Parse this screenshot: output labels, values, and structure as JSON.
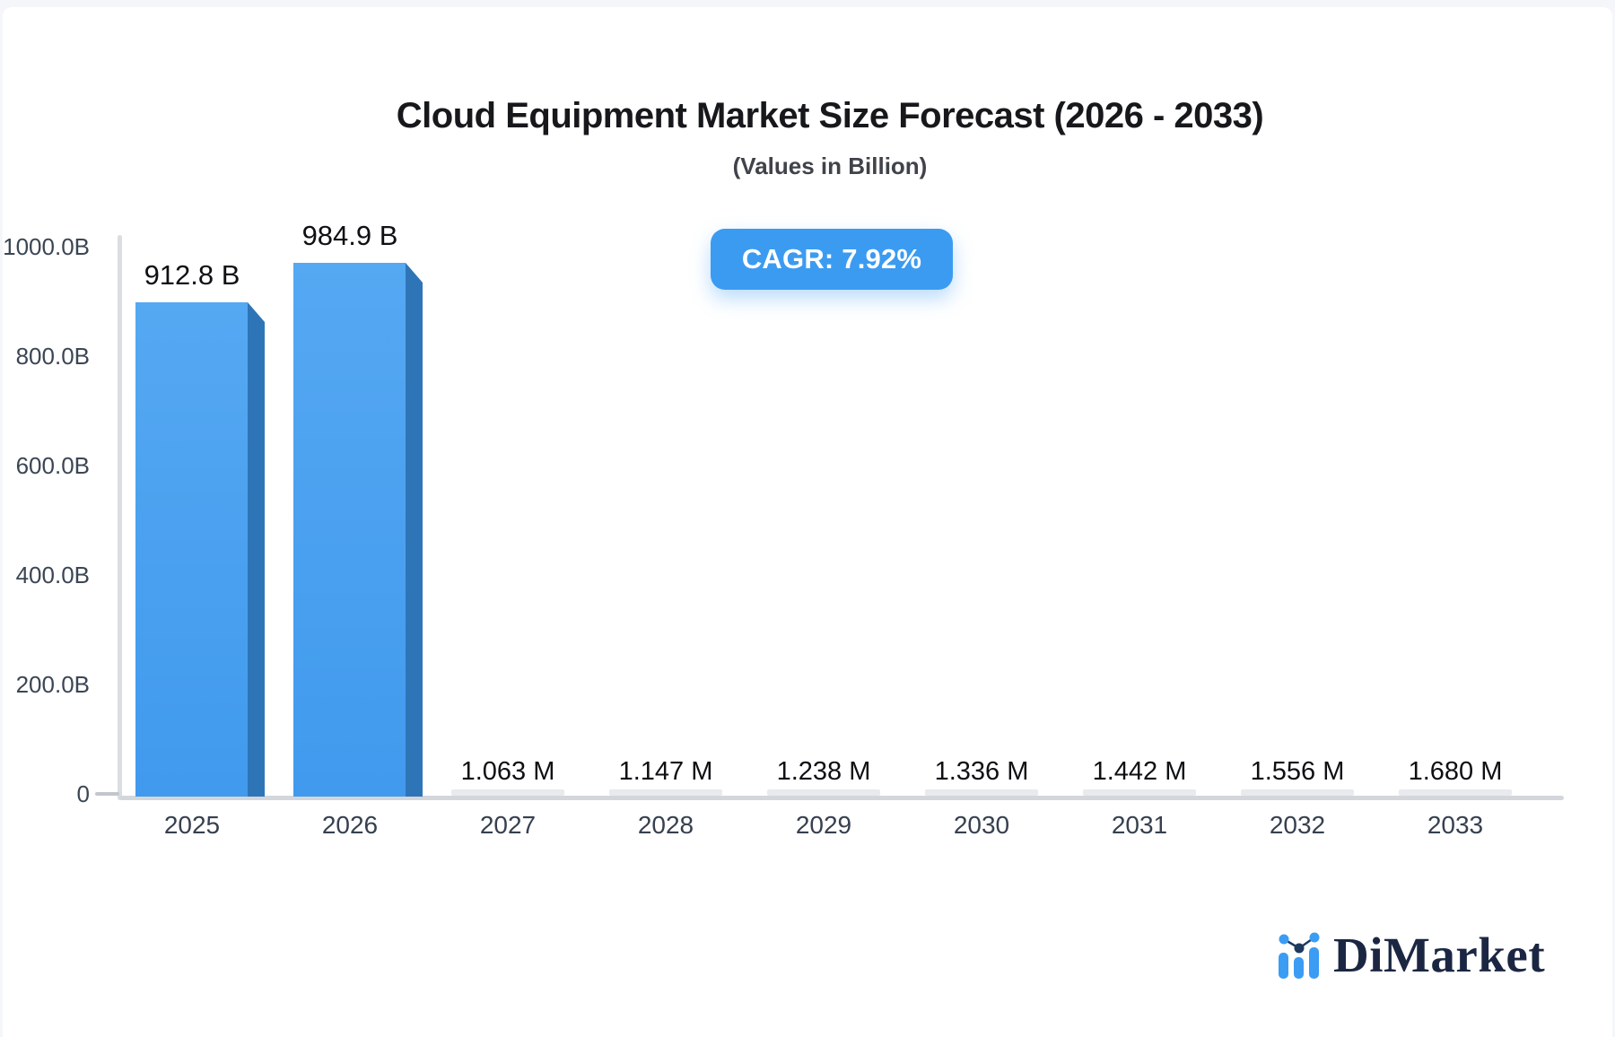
{
  "header": {
    "title": "Cloud Equipment Market Size Forecast (2026 - 2033)",
    "subtitle": "(Values in Billion)",
    "cagr_label": "CAGR: 7.92%"
  },
  "chart_data": {
    "type": "bar",
    "title": "Cloud Equipment Market Size Forecast (2026 - 2033)",
    "subtitle": "(Values in Billion)",
    "categories": [
      "2025",
      "2026",
      "2027",
      "2028",
      "2029",
      "2030",
      "2031",
      "2032",
      "2033"
    ],
    "value_labels": [
      "912.8 B",
      "984.9 B",
      "1.063 M",
      "1.147 M",
      "1.238 M",
      "1.336 M",
      "1.442 M",
      "1.556 M",
      "1.680 M"
    ],
    "values": [
      912.8,
      984.9,
      1.063,
      1.147,
      1.238,
      1.336,
      1.442,
      1.556,
      1.68
    ],
    "units": [
      "B",
      "B",
      "M",
      "M",
      "M",
      "M",
      "M",
      "M",
      "M"
    ],
    "cagr_percent": 7.92,
    "y_axis": {
      "ticks": [
        "1000.0B",
        "800.0B",
        "600.0B",
        "400.0B",
        "200.0B",
        "0"
      ],
      "ylim_billion": [
        0,
        1000
      ],
      "grid": false
    },
    "legend": null,
    "bar_colors": {
      "face_top": "#55a8f2",
      "face_bottom": "#419aee",
      "side": "#2e75b8",
      "tiny_bar": "#e8eaed"
    }
  },
  "logo": {
    "text": "DiMarket",
    "icon": "mini-bar-chart-with-dots",
    "icon_blue": "#3b9cf4",
    "icon_navy": "#1e3a5f"
  }
}
